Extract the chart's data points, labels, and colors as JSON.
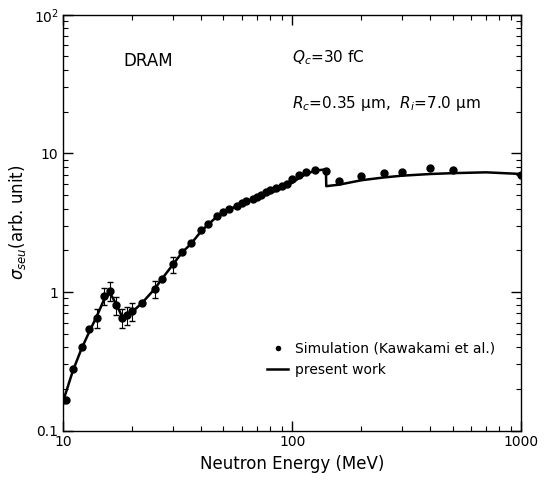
{
  "title_annotation": "DRAM",
  "param_text1": "$Q_c$=30 fC",
  "param_text2": "$R_c$=0.35 μm,  $R_i$=7.0 μm",
  "xlabel": "Neutron Energy (MeV)",
  "ylabel": "$\\sigma_{seu}$(arb. unit)",
  "xlim": [
    10,
    1000
  ],
  "ylim": [
    0.1,
    100
  ],
  "legend_dot": "Simulation (Kawakami et al.)",
  "legend_line": "present work",
  "scatter_x": [
    10,
    10.3,
    11,
    12,
    13,
    14,
    15,
    16,
    17,
    18,
    19,
    20,
    22,
    25,
    27,
    30,
    33,
    36,
    40,
    43,
    47,
    50,
    53,
    57,
    60,
    63,
    67,
    70,
    73,
    77,
    80,
    85,
    90,
    95,
    100,
    107,
    115,
    125,
    140,
    160,
    200,
    250,
    300,
    400,
    500,
    1000
  ],
  "scatter_y": [
    0.165,
    0.165,
    0.28,
    0.4,
    0.54,
    0.65,
    0.93,
    1.02,
    0.8,
    0.65,
    0.68,
    0.73,
    0.83,
    1.05,
    1.25,
    1.58,
    1.95,
    2.25,
    2.78,
    3.1,
    3.55,
    3.8,
    4.0,
    4.2,
    4.35,
    4.55,
    4.72,
    4.85,
    5.05,
    5.25,
    5.4,
    5.6,
    5.8,
    6.05,
    6.5,
    7.0,
    7.4,
    7.6,
    7.5,
    6.3,
    6.85,
    7.2,
    7.35,
    7.9,
    7.6,
    7.0
  ],
  "scatter_yerr_x": [
    14,
    15,
    16,
    17,
    18,
    19,
    20,
    25,
    30
  ],
  "scatter_yerr_y": [
    0.65,
    0.93,
    1.02,
    0.8,
    0.65,
    0.68,
    0.73,
    1.05,
    1.58
  ],
  "scatter_yerr_lo": [
    0.1,
    0.13,
    0.16,
    0.12,
    0.1,
    0.1,
    0.11,
    0.15,
    0.2
  ],
  "scatter_yerr_hi": [
    0.1,
    0.13,
    0.16,
    0.12,
    0.1,
    0.1,
    0.11,
    0.15,
    0.2
  ],
  "line_x": [
    10,
    11,
    12,
    13,
    14,
    15,
    16,
    17,
    18,
    19,
    20,
    22,
    25,
    27,
    30,
    33,
    36,
    40,
    43,
    47,
    50,
    55,
    60,
    65,
    70,
    75,
    80,
    85,
    90,
    95,
    100,
    107,
    115,
    125,
    138,
    140,
    140.5,
    160,
    200,
    250,
    300,
    400,
    500,
    700,
    1000
  ],
  "line_y": [
    0.165,
    0.27,
    0.39,
    0.52,
    0.67,
    0.87,
    0.98,
    0.82,
    0.67,
    0.66,
    0.72,
    0.83,
    1.05,
    1.25,
    1.57,
    1.93,
    2.22,
    2.75,
    3.08,
    3.52,
    3.78,
    4.05,
    4.32,
    4.58,
    4.78,
    4.98,
    5.18,
    5.38,
    5.58,
    5.85,
    6.15,
    6.65,
    7.1,
    7.5,
    7.65,
    7.65,
    5.8,
    5.95,
    6.4,
    6.7,
    6.9,
    7.1,
    7.2,
    7.3,
    7.1
  ],
  "dot_color": "black",
  "line_color": "black",
  "dot_size": 5,
  "background_color": "white"
}
